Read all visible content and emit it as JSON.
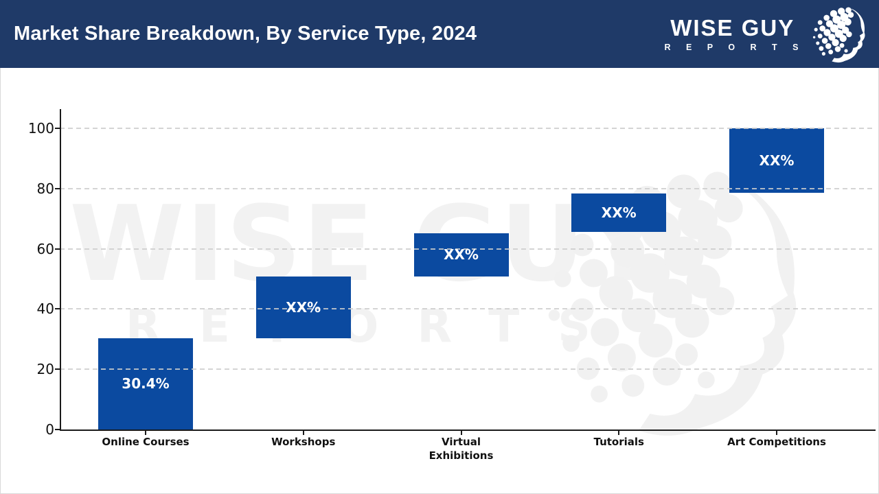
{
  "header": {
    "title": "Market Share Breakdown, By Service Type, 2024",
    "logo": {
      "line1": "WISE GUY",
      "line2": "R E P O R T S"
    }
  },
  "watermark": {
    "line1": "WISE GUY",
    "line2": "REPORTS"
  },
  "colors": {
    "header_bg": "#1f3a68",
    "bar_fill": "#0b4aa0",
    "bar_label_text": "#ffffff",
    "watermark": "#f2f2f2",
    "gridline": "#cdcdcd",
    "axis": "#1a1a1a"
  },
  "chart_data": {
    "type": "bar",
    "subtype": "waterfall-floating-bars",
    "title": "Market Share Breakdown, By Service Type, 2024",
    "xlabel": "",
    "ylabel": "",
    "ylim": [
      0,
      105
    ],
    "yticks": [
      0,
      20,
      40,
      60,
      80,
      100
    ],
    "grid": "dashed-horizontal-drawn-over-bars",
    "legend": "none",
    "categories": [
      "Online Courses",
      "Workshops",
      "Virtual\nExhibitions",
      "Tutorials",
      "Art Competitions"
    ],
    "segments": [
      {
        "category": "Online Courses",
        "start": 0,
        "end": 30.4,
        "label": "30.4%"
      },
      {
        "category": "Workshops",
        "start": 30.4,
        "end": 50.9,
        "label": "XX%"
      },
      {
        "category": "Virtual\nExhibitions",
        "start": 50.9,
        "end": 65.2,
        "label": "XX%"
      },
      {
        "category": "Tutorials",
        "start": 65.5,
        "end": 78.3,
        "label": "XX%"
      },
      {
        "category": "Art Competitions",
        "start": 78.6,
        "end": 100,
        "label": "XX%"
      }
    ]
  }
}
